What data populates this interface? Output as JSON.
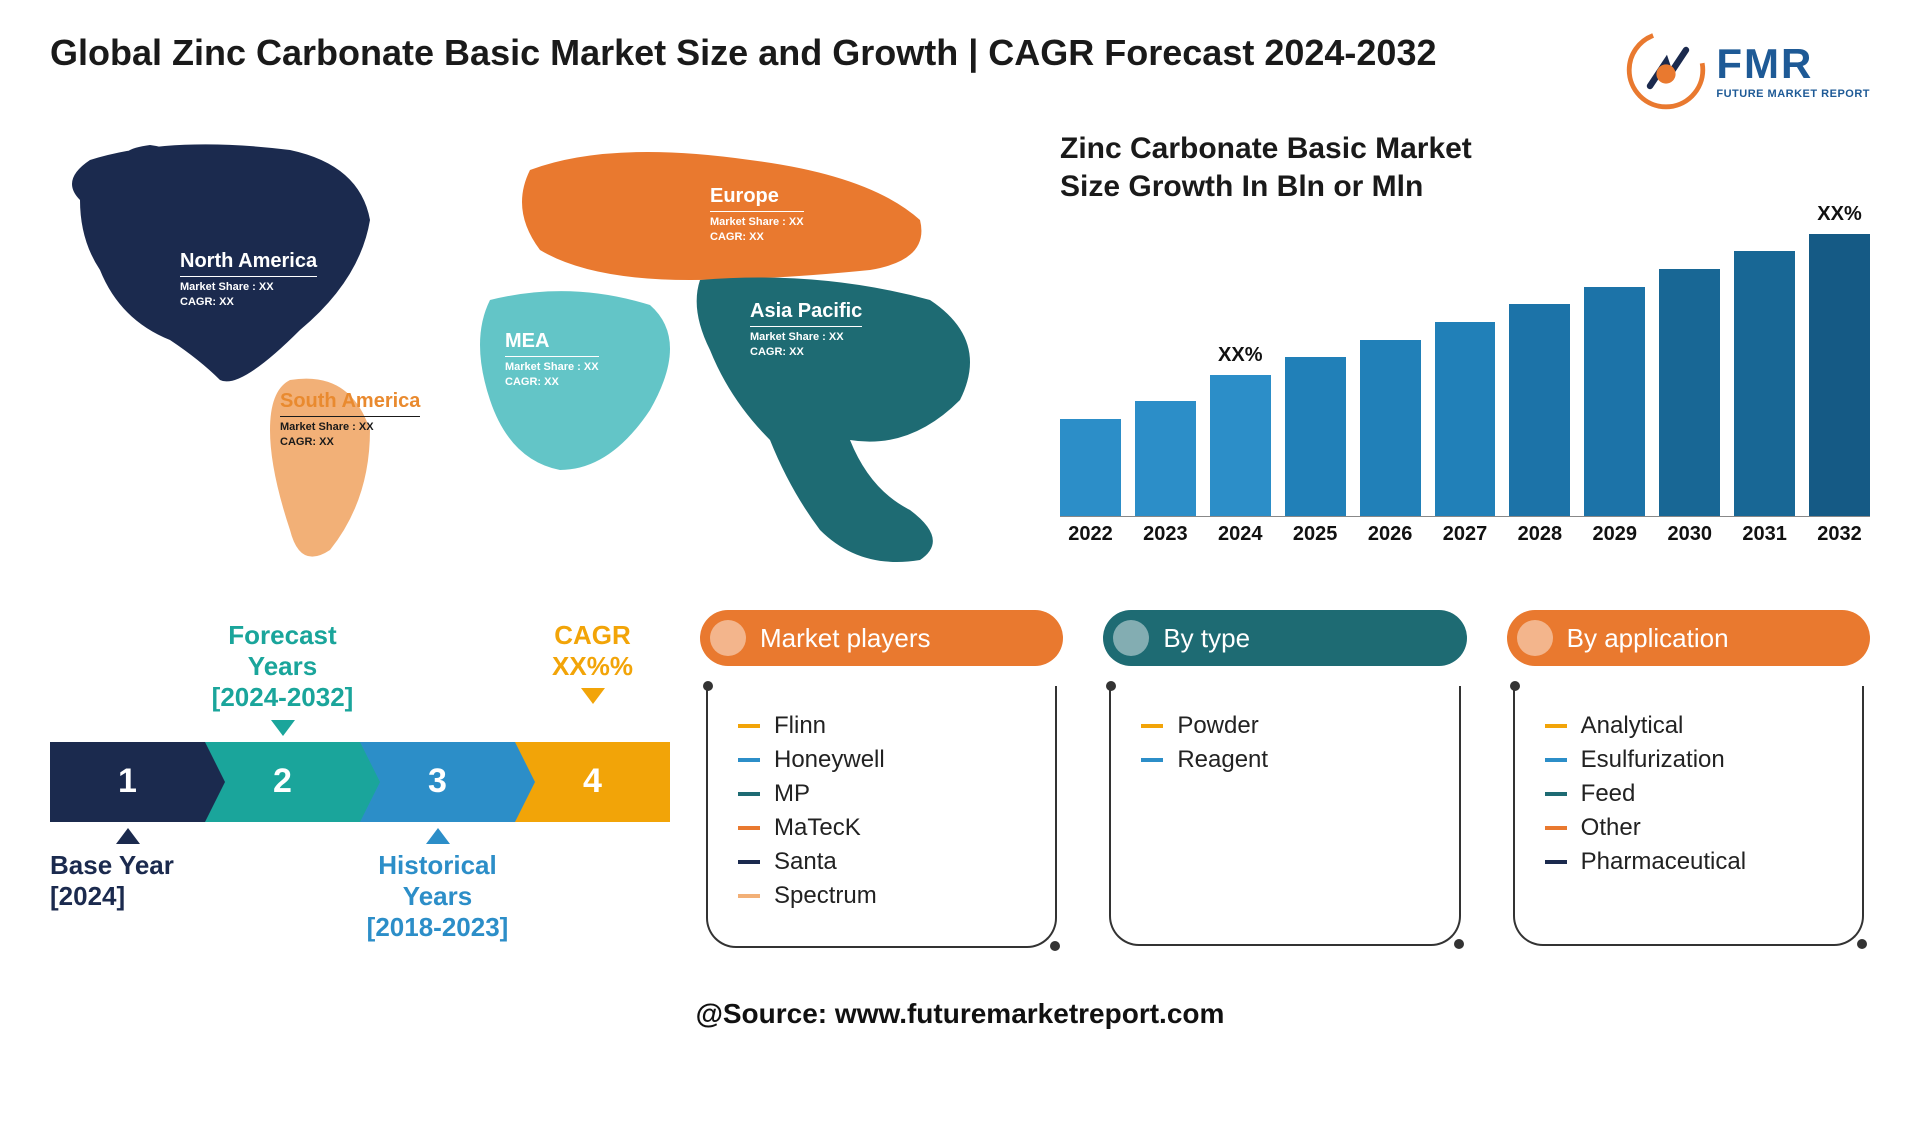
{
  "title": "Global Zinc Carbonate Basic Market Size and Growth | CAGR Forecast 2024-2032",
  "logo": {
    "fmr": "FMR",
    "sub": "FUTURE MARKET REPORT"
  },
  "map": {
    "regions": [
      {
        "key": "na",
        "name": "North America",
        "share": "Market Share : XX",
        "cagr": "CAGR: XX",
        "color": "#1b2a4e",
        "label_color": "light"
      },
      {
        "key": "sa",
        "name": "South America",
        "share": "Market Share : XX",
        "cagr": "CAGR: XX",
        "color": "#f2b077",
        "label_color": "dark"
      },
      {
        "key": "eu",
        "name": "Europe",
        "share": "Market Share : XX",
        "cagr": "CAGR: XX",
        "color": "#e9792f",
        "label_color": "light"
      },
      {
        "key": "mea",
        "name": "MEA",
        "share": "Market Share : XX",
        "cagr": "CAGR: XX",
        "color": "#63c5c7",
        "label_color": "light"
      },
      {
        "key": "ap",
        "name": "Asia Pacific",
        "share": "Market Share : XX",
        "cagr": "CAGR: XX",
        "color": "#1e6b73",
        "label_color": "light"
      }
    ]
  },
  "bar_chart": {
    "title": "Zinc Carbonate Basic Market Size Growth In Bln or Mln",
    "type": "bar",
    "categories": [
      "2022",
      "2023",
      "2024",
      "2025",
      "2026",
      "2027",
      "2028",
      "2029",
      "2030",
      "2031",
      "2032"
    ],
    "values": [
      110,
      130,
      160,
      180,
      200,
      220,
      240,
      260,
      280,
      300,
      320
    ],
    "bar_colors": [
      "#2c8ec8",
      "#2c8ec8",
      "#2c8ec8",
      "#2180b8",
      "#2180b8",
      "#2180b8",
      "#1c73a8",
      "#1c73a8",
      "#186795",
      "#186795",
      "#155a85"
    ],
    "ylim": [
      0,
      340
    ],
    "annotations": [
      {
        "index": 2,
        "text": "XX%"
      },
      {
        "index": 10,
        "text": "XX%"
      }
    ],
    "label_fontsize": 20,
    "label_fontweight": 700,
    "background_color": "#ffffff"
  },
  "timeline": {
    "top": [
      null,
      {
        "title": "Forecast Years",
        "sub": "[2024-2032]",
        "color": "#1aa59b"
      },
      null,
      {
        "title": "CAGR",
        "sub": "XX%%",
        "color": "#f2a408"
      }
    ],
    "segments": [
      {
        "num": "1",
        "color": "#1b2a4e"
      },
      {
        "num": "2",
        "color": "#1aa59b"
      },
      {
        "num": "3",
        "color": "#2c8ec8"
      },
      {
        "num": "4",
        "color": "#f2a408"
      }
    ],
    "bottom": [
      {
        "title": "Base Year",
        "sub": "[2024]",
        "color": "#1b2a4e",
        "align": "left"
      },
      null,
      {
        "title": "Historical Years",
        "sub": "[2018-2023]",
        "color": "#2c8ec8",
        "align": "center"
      },
      null
    ]
  },
  "segments": [
    {
      "head": "Market players",
      "head_color": "#e9792f",
      "items": [
        {
          "t": "Flinn",
          "c": "#f2a408"
        },
        {
          "t": "Honeywell",
          "c": "#2c8ec8"
        },
        {
          "t": "MP",
          "c": "#1e6b73"
        },
        {
          "t": "MaTecK",
          "c": "#e9792f"
        },
        {
          "t": "Santa",
          "c": "#1b2a4e"
        },
        {
          "t": "Spectrum",
          "c": "#f2b077"
        }
      ]
    },
    {
      "head": "By type",
      "head_color": "#1e6b73",
      "items": [
        {
          "t": "Powder",
          "c": "#f2a408"
        },
        {
          "t": "Reagent",
          "c": "#2c8ec8"
        }
      ]
    },
    {
      "head": "By application",
      "head_color": "#e9792f",
      "items": [
        {
          "t": "Analytical",
          "c": "#f2a408"
        },
        {
          "t": "Esulfurization",
          "c": "#2c8ec8"
        },
        {
          "t": "Feed",
          "c": "#1e6b73"
        },
        {
          "t": "Other",
          "c": "#e9792f"
        },
        {
          "t": "Pharmaceutical",
          "c": "#1b2a4e"
        }
      ]
    }
  ],
  "source": "@Source: www.futuremarketreport.com"
}
